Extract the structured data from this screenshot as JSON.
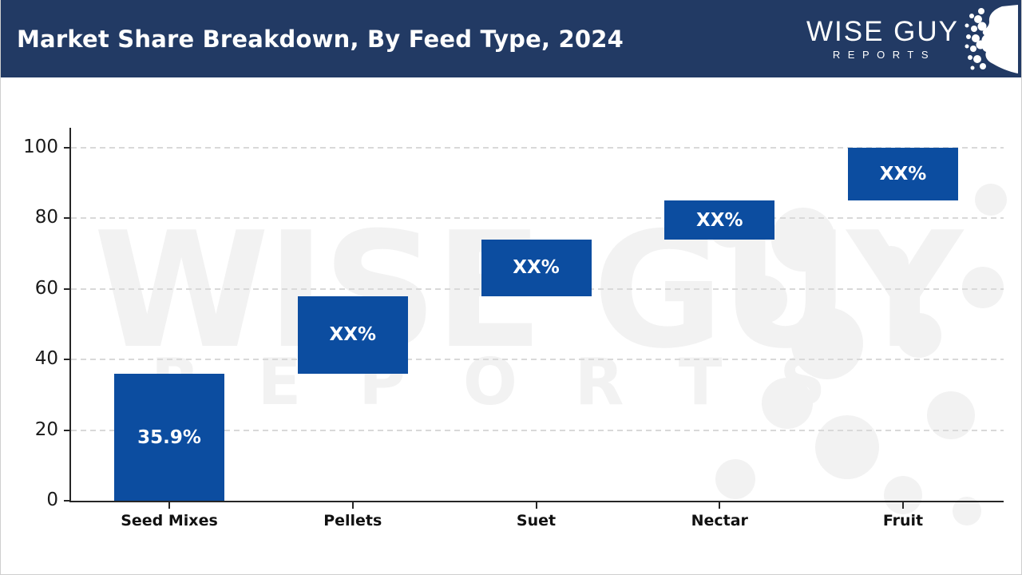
{
  "header": {
    "title": "Market Share Breakdown, By Feed Type, 2024",
    "bg_color": "#223a64",
    "logo": {
      "wordmark": "WISE GUY",
      "subtitle": "REPORTS"
    }
  },
  "watermark": {
    "wordmark": "WISE GUY",
    "subtitle": "REPORTS"
  },
  "chart_data": {
    "type": "bar",
    "subtype": "waterfall-floating-bars",
    "title": "Market Share Breakdown, By Feed Type, 2024",
    "categories": [
      "Seed Mixes",
      "Pellets",
      "Suet",
      "Nectar",
      "Fruit"
    ],
    "segments": [
      {
        "category": "Seed Mixes",
        "start": 0,
        "end": 35.9,
        "label": "35.9%"
      },
      {
        "category": "Pellets",
        "start": 35.9,
        "end": 58,
        "label": "XX%"
      },
      {
        "category": "Suet",
        "start": 58,
        "end": 74,
        "label": "XX%"
      },
      {
        "category": "Nectar",
        "start": 74,
        "end": 85,
        "label": "XX%"
      },
      {
        "category": "Fruit",
        "start": 85,
        "end": 100,
        "label": "XX%"
      }
    ],
    "xlabel": "",
    "ylabel": "",
    "yticks": [
      0,
      20,
      40,
      60,
      80,
      100
    ],
    "ylim": [
      0,
      105
    ],
    "grid": "horizontal-dashed",
    "legend": "none",
    "bar_color": "#0c4da0",
    "bar_label_color": "#ffffff",
    "axis_color": "#262626",
    "gridline_color": "#d9d9d9",
    "tick_label_color": "#1a1a1a"
  }
}
